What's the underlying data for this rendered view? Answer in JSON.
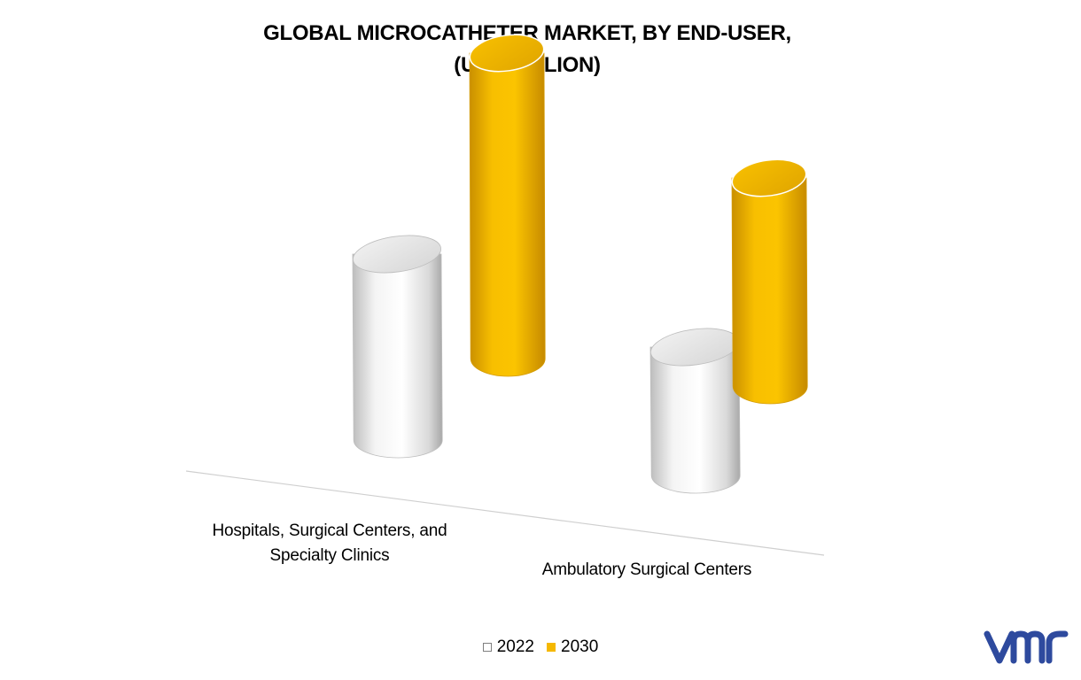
{
  "chart_data": {
    "type": "bar",
    "style": "3d-cylinder",
    "title": "GLOBAL MICROCATHETER MARKET, BY END-USER,",
    "subtitle": "(USD BILLION)",
    "categories": [
      "Hospitals, Surgical Centers, and Specialty Clinics",
      "Ambulatory Surgical Centers"
    ],
    "series": [
      {
        "name": "2022",
        "color": "#ececec",
        "values": [
          2.1,
          1.45
        ]
      },
      {
        "name": "2030",
        "color": "#f5b800",
        "values": [
          3.45,
          2.35
        ]
      }
    ],
    "legend_position": "bottom",
    "grid": false
  },
  "labels": {
    "title_line1": "GLOBAL MICROCATHETER MARKET, BY END-USER,",
    "title_line2": "(USD BILLION)",
    "category_0": "Hospitals, Surgical Centers, and Specialty Clinics",
    "category_1": "Ambulatory Surgical Centers",
    "legend_0": "2022",
    "legend_1": "2030"
  },
  "logo": {
    "name": "vmr-logo",
    "text": "vmr",
    "color": "#2e4a9e"
  }
}
